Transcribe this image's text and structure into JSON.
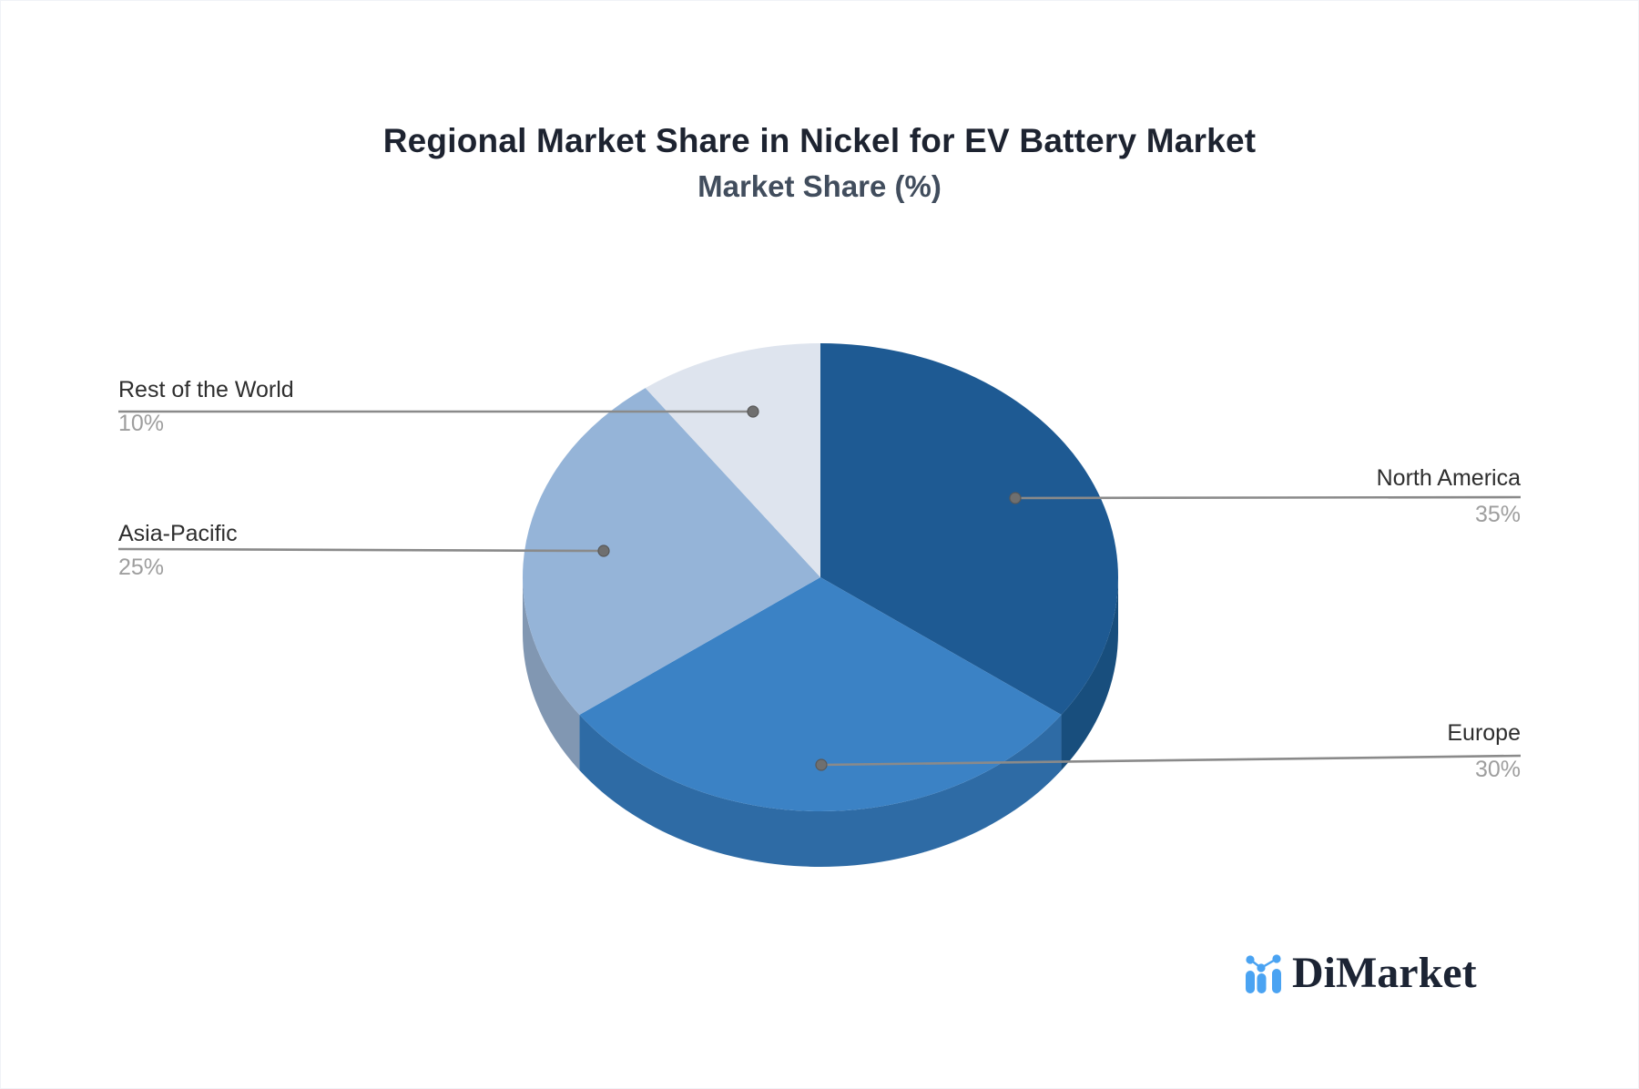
{
  "header": {
    "title": "Regional Market Share in Nickel for EV Battery Market",
    "subtitle": "Market Share (%)"
  },
  "chart_data": {
    "type": "pie",
    "style": "3d-pie",
    "title": "Regional Market Share in Nickel for EV Battery Market",
    "subtitle": "Market Share (%)",
    "unit": "%",
    "start_angle": "12-oclock",
    "direction": "clockwise",
    "categories": [
      "North America",
      "Europe",
      "Asia-Pacific",
      "Rest of the World"
    ],
    "values": [
      35,
      30,
      25,
      10
    ],
    "slices": [
      {
        "label": "North America",
        "value": 35,
        "pct_label": "35%",
        "color": "#1e5a93",
        "side_color": "#184e7d",
        "label_side": "right"
      },
      {
        "label": "Europe",
        "value": 30,
        "pct_label": "30%",
        "color": "#3b82c5",
        "side_color": "#2e6ba5",
        "label_side": "right"
      },
      {
        "label": "Asia-Pacific",
        "value": 25,
        "pct_label": "25%",
        "color": "#95b4d8",
        "side_color": "#8197b2",
        "label_side": "left"
      },
      {
        "label": "Rest of the World",
        "value": 10,
        "pct_label": "10%",
        "color": "#dee4ee",
        "side_color": "#c3cdda",
        "label_side": "left"
      }
    ],
    "leader_line_color": "#8a8a8a",
    "leader_dot_color": "#6f6f6f",
    "label_name_color": "#2e2e2e",
    "label_pct_color": "#9e9e9e",
    "legend": "none",
    "grid": false
  },
  "logo": {
    "text": "DiMarket",
    "icon": "bar-chart-icon",
    "text_color": "#1c2434",
    "icon_color": "#4aa3f2"
  }
}
